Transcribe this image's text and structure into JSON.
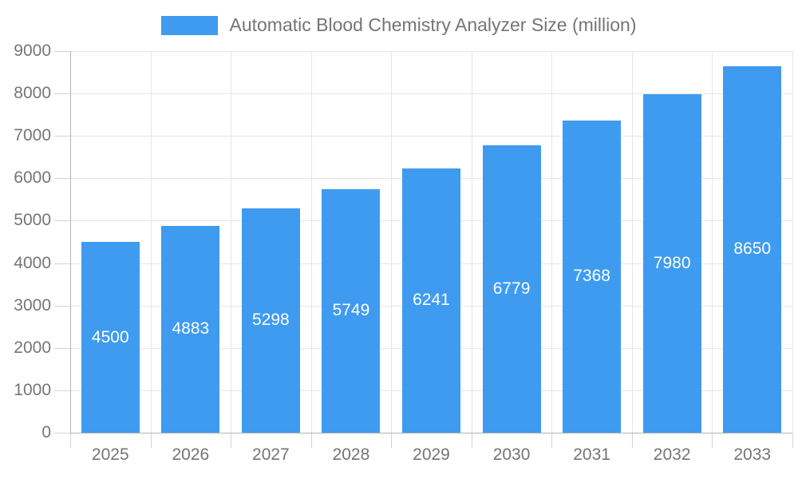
{
  "chart_data": {
    "type": "bar",
    "title": "Automatic Blood Chemistry Analyzer Size (million)",
    "categories": [
      "2025",
      "2026",
      "2027",
      "2028",
      "2029",
      "2030",
      "2031",
      "2032",
      "2033"
    ],
    "values": [
      4500,
      4883,
      5298,
      5749,
      6241,
      6779,
      7368,
      7980,
      8650
    ],
    "xlabel": "",
    "ylabel": "",
    "ylim": [
      0,
      9000
    ],
    "ytick_step": 1000,
    "grid": true,
    "legend_position": "top",
    "value_labels": "inside-center",
    "colors": {
      "bar": "#3e9bf0",
      "value_label_text": "#ffffff",
      "axis_text": "#757575",
      "legend_text": "#757575",
      "grid_line": "#e6e6e6",
      "axis_line": "#b3b3b3",
      "tick_line": "#d4d4d4",
      "background": "#ffffff"
    }
  }
}
